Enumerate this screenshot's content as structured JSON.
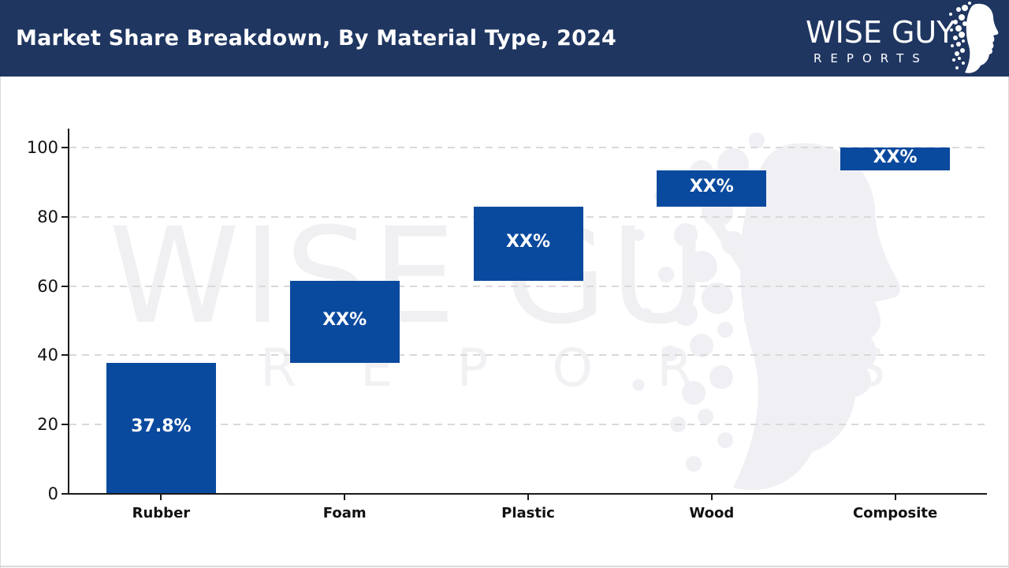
{
  "header": {
    "title": "Market Share Breakdown, By Material Type, 2024",
    "bg_color": "#1f3661",
    "logo": {
      "line1": "WISE GUY",
      "line2": "REPORTS"
    }
  },
  "watermark": {
    "line1": "WISE GUY",
    "line2": "R E P O R T S"
  },
  "chart_data": {
    "type": "bar",
    "subtype": "waterfall",
    "title": "Market Share Breakdown, By Material Type, 2024",
    "categories": [
      "Rubber",
      "Foam",
      "Plastic",
      "Wood",
      "Composite"
    ],
    "segments": [
      {
        "category": "Rubber",
        "start": 0,
        "end": 37.8,
        "label": "37.8%"
      },
      {
        "category": "Foam",
        "start": 37.8,
        "end": 61.5,
        "label": "XX%"
      },
      {
        "category": "Plastic",
        "start": 61.5,
        "end": 82.9,
        "label": "XX%"
      },
      {
        "category": "Wood",
        "start": 82.9,
        "end": 93.3,
        "label": "XX%"
      },
      {
        "category": "Composite",
        "start": 93.3,
        "end": 100,
        "label": "XX%"
      }
    ],
    "increments_pct": [
      37.8,
      23.7,
      21.4,
      10.4,
      6.7
    ],
    "yticks": [
      0,
      20,
      40,
      60,
      80,
      100
    ],
    "ylim": [
      0,
      105
    ],
    "xlabel": "",
    "ylabel": "",
    "grid": {
      "axis": "y",
      "style": "dashed",
      "color": "#d9d9d9"
    },
    "legend": "none",
    "bar_color": "#0a4a9e",
    "bar_label_color": "#ffffff",
    "axis_color": "#1a1a1a"
  }
}
